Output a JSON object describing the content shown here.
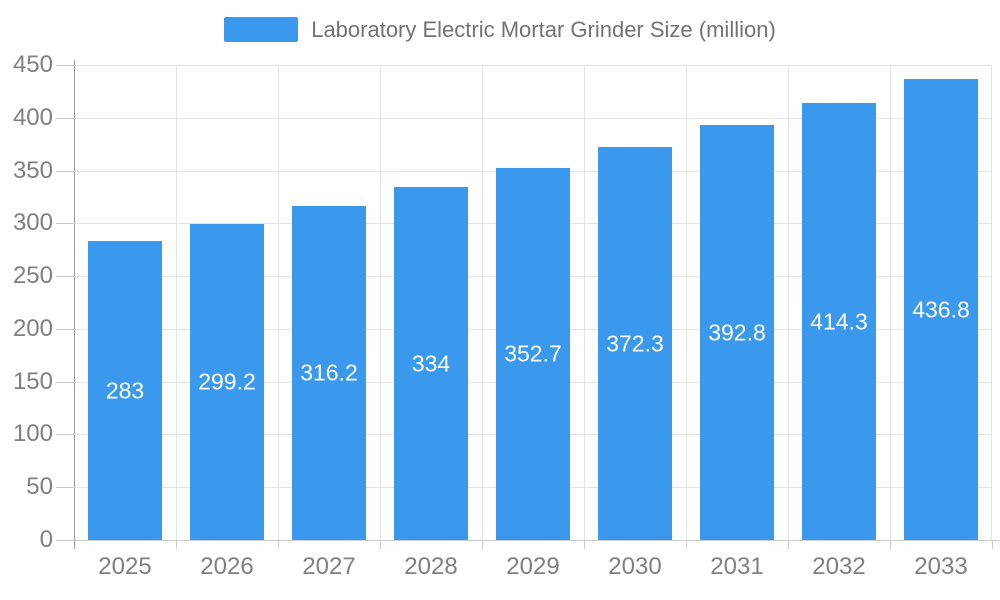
{
  "chart_data": {
    "type": "bar",
    "title": "Laboratory Electric Mortar Grinder Size (million)",
    "legend": [
      "Laboratory Electric Mortar Grinder Size (million)"
    ],
    "legend_position": "top-center",
    "categories": [
      "2025",
      "2026",
      "2027",
      "2028",
      "2029",
      "2030",
      "2031",
      "2032",
      "2033"
    ],
    "values": [
      283,
      299.2,
      316.2,
      334,
      352.7,
      372.3,
      392.8,
      414.3,
      436.8
    ],
    "value_labels": [
      "283",
      "299.2",
      "316.2",
      "334",
      "352.7",
      "372.3",
      "392.8",
      "414.3",
      "436.8"
    ],
    "xlabel": "",
    "ylabel": "",
    "ylim": [
      0,
      450
    ],
    "yticks": [
      0,
      50,
      100,
      150,
      200,
      250,
      300,
      350,
      400,
      450
    ],
    "grid": true,
    "colors": {
      "bar": "#3a99ec",
      "grid_line": "#e3e3e3",
      "y_axis_line": "#999999",
      "x_axis_line": "#cccccc",
      "tick": "#c9c9c9",
      "axis_text": "#808080",
      "legend_text": "#737373",
      "bar_label_text": "#ffffff"
    }
  }
}
